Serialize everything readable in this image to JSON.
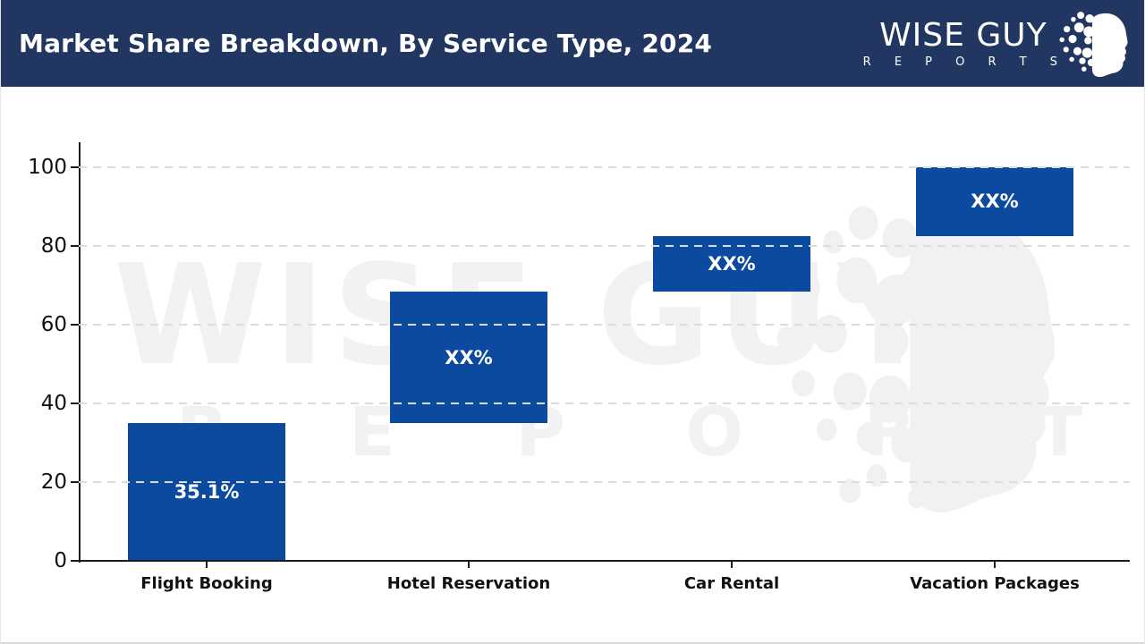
{
  "header": {
    "title": "Market Share Breakdown, By Service Type, 2024",
    "logo": {
      "line1": "WISE GUY",
      "line2": "R E P O R T S"
    }
  },
  "watermark": {
    "line1": "WISE GUY",
    "line2": "R E P O R T S"
  },
  "colors": {
    "header_bg": "#223662",
    "bar": "#0b4a9e",
    "bar_label": "#ffffff",
    "gridline": "#dcdcdc",
    "axis": "#1a1a1a",
    "watermark": "#f2f2f4"
  },
  "chart_data": {
    "type": "bar",
    "subtype": "waterfall",
    "title": "Market Share Breakdown, By Service Type, 2024",
    "categories": [
      "Flight Booking",
      "Hotel Reservation",
      "Car Rental",
      "Vacation Packages"
    ],
    "segments": [
      {
        "category": "Flight Booking",
        "start": 0,
        "end": 35.1,
        "label": "35.1%"
      },
      {
        "category": "Hotel Reservation",
        "start": 35.1,
        "end": 68.3,
        "label": "XX%"
      },
      {
        "category": "Car Rental",
        "start": 68.3,
        "end": 82.6,
        "label": "XX%"
      },
      {
        "category": "Vacation Packages",
        "start": 82.6,
        "end": 100,
        "label": "XX%"
      }
    ],
    "y_ticks": [
      0,
      20,
      40,
      60,
      80,
      100
    ],
    "ylim": [
      0,
      105
    ],
    "xlabel": "",
    "ylabel": "",
    "grid": "horizontal-dashed",
    "legend": "none"
  }
}
